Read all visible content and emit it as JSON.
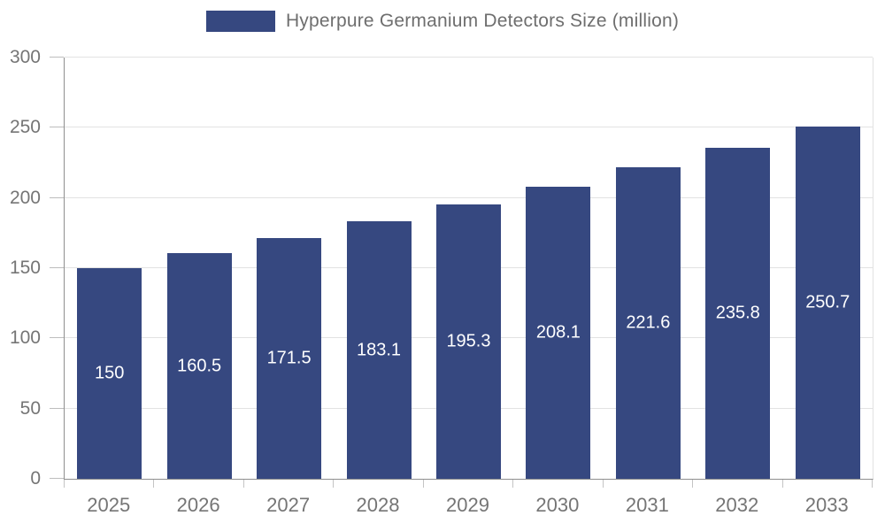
{
  "legend": {
    "label": "Hyperpure Germanium Detectors Size (million)"
  },
  "chart_data": {
    "type": "bar",
    "title": "",
    "xlabel": "",
    "ylabel": "",
    "categories": [
      "2025",
      "2026",
      "2027",
      "2028",
      "2029",
      "2030",
      "2031",
      "2032",
      "2033"
    ],
    "series": [
      {
        "name": "Hyperpure Germanium Detectors Size (million)",
        "values": [
          150,
          160.5,
          171.5,
          183.1,
          195.3,
          208.1,
          221.6,
          235.8,
          250.7
        ]
      }
    ],
    "value_labels": [
      "150",
      "160.5",
      "171.5",
      "183.1",
      "195.3",
      "208.1",
      "221.6",
      "235.8",
      "250.7"
    ],
    "ylim": [
      0,
      300
    ],
    "yticks": [
      0,
      50,
      100,
      150,
      200,
      250,
      300
    ],
    "grid": true,
    "legend_position": "top"
  },
  "colors": {
    "bar": "#364880",
    "bar_label": "#ffffff",
    "axis_line": "#8f8f8f",
    "gridline": "#e2e2e2",
    "tick_label": "#757575",
    "legend_text": "#6e6e6e"
  }
}
